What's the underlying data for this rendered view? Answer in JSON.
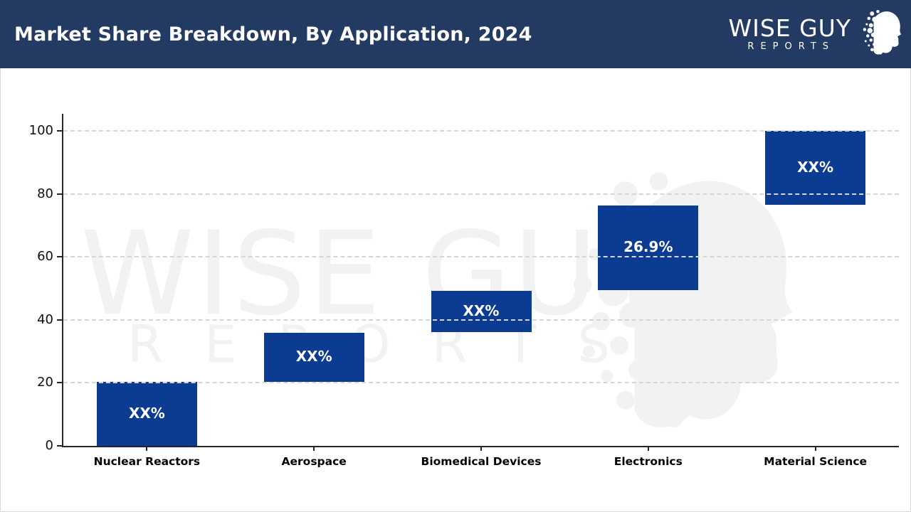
{
  "header": {
    "title": "Market Share Breakdown, By Application, 2024",
    "brand": {
      "line1": "WISE GUY",
      "line2": "REPORTS"
    }
  },
  "watermark": {
    "line1": "WISE GUY",
    "line2": "REPORTS"
  },
  "colors": {
    "header_bg": "#233a63",
    "bar": "#0c3b92",
    "axis": "#262626",
    "grid": "#d6d6d6",
    "tick_label": "#111111",
    "category_label": "#000000",
    "value_label": "#ffffff",
    "watermark": "#f2f2f2",
    "card_border": "#d9d9d9"
  },
  "chart_data": {
    "type": "bar",
    "variant": "waterfall",
    "title": "Market Share Breakdown, By Application, 2024",
    "categories": [
      "Nuclear Reactors",
      "Aerospace",
      "Biomedical Devices",
      "Electronics",
      "Material Science"
    ],
    "bars": [
      {
        "category": "Nuclear Reactors",
        "start": 0,
        "end": 20.3,
        "label": "XX%"
      },
      {
        "category": "Aerospace",
        "start": 20.4,
        "end": 36.0,
        "label": "XX%"
      },
      {
        "category": "Biomedical Devices",
        "start": 36.2,
        "end": 49.3,
        "label": "XX%"
      },
      {
        "category": "Electronics",
        "start": 49.5,
        "end": 76.4,
        "label": "26.9%"
      },
      {
        "category": "Material Science",
        "start": 76.5,
        "end": 100.0,
        "label": "XX%"
      }
    ],
    "xlabel": "",
    "ylabel": "",
    "yticks": [
      0,
      20,
      40,
      60,
      80,
      100
    ],
    "ylim": [
      0,
      105.5
    ],
    "grid": true,
    "grid_style": "dashed",
    "legend": false
  }
}
